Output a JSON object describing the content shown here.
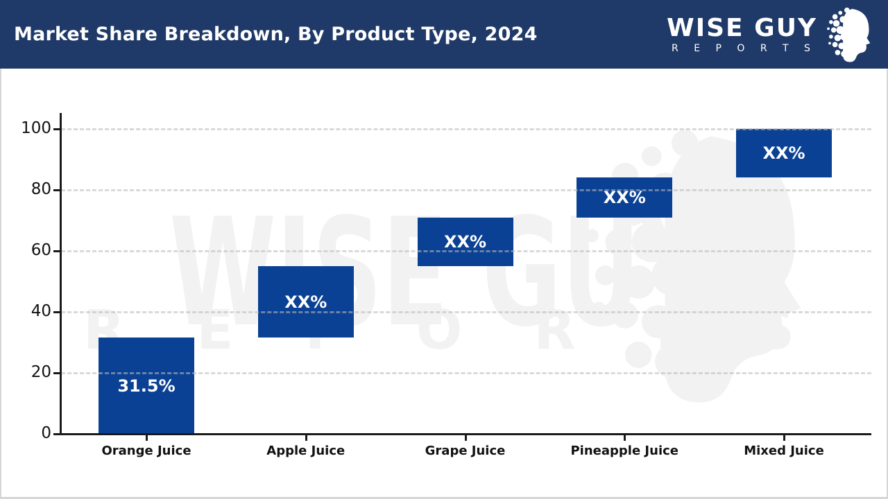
{
  "header": {
    "title": "Market Share Breakdown, By Product Type, 2024",
    "logo": {
      "name": "WISE GUY",
      "sub": "R E P O R T S"
    }
  },
  "watermark": {
    "line1": "WISE GUY",
    "line2": "R E P O R T S"
  },
  "colors": {
    "header_bg": "#1F3A68",
    "bar_blue": "#0B4194",
    "axis": "#1a1a1a",
    "watermark_gray": "#f2f2f2",
    "card_border": "#d6d6d6"
  },
  "chart_data": {
    "type": "bar",
    "subtype": "waterfall",
    "title": "Market Share Breakdown, By Product Type, 2024",
    "categories": [
      "Orange Juice",
      "Apple Juice",
      "Grape Juice",
      "Pineapple Juice",
      "Mixed Juice"
    ],
    "segments": [
      {
        "category": "Orange Juice",
        "start": 0,
        "end": 31.5,
        "value": 31.5,
        "label": "31.5%"
      },
      {
        "category": "Apple Juice",
        "start": 31.5,
        "end": 55,
        "value": 23.5,
        "label": "XX%"
      },
      {
        "category": "Grape Juice",
        "start": 55,
        "end": 71,
        "value": 16,
        "label": "XX%"
      },
      {
        "category": "Pineapple Juice",
        "start": 71,
        "end": 84,
        "value": 13,
        "label": "XX%"
      },
      {
        "category": "Mixed Juice",
        "start": 84,
        "end": 100,
        "value": 16,
        "label": "XX%"
      }
    ],
    "xlabel": "",
    "ylabel": "",
    "yticks": [
      0,
      20,
      40,
      60,
      80,
      100
    ],
    "ylim": [
      0,
      105
    ],
    "grid": true,
    "gridline_style": "dashed",
    "legend": false,
    "bar_color": "#0B4194",
    "bar_label_color": "#ffffff"
  }
}
